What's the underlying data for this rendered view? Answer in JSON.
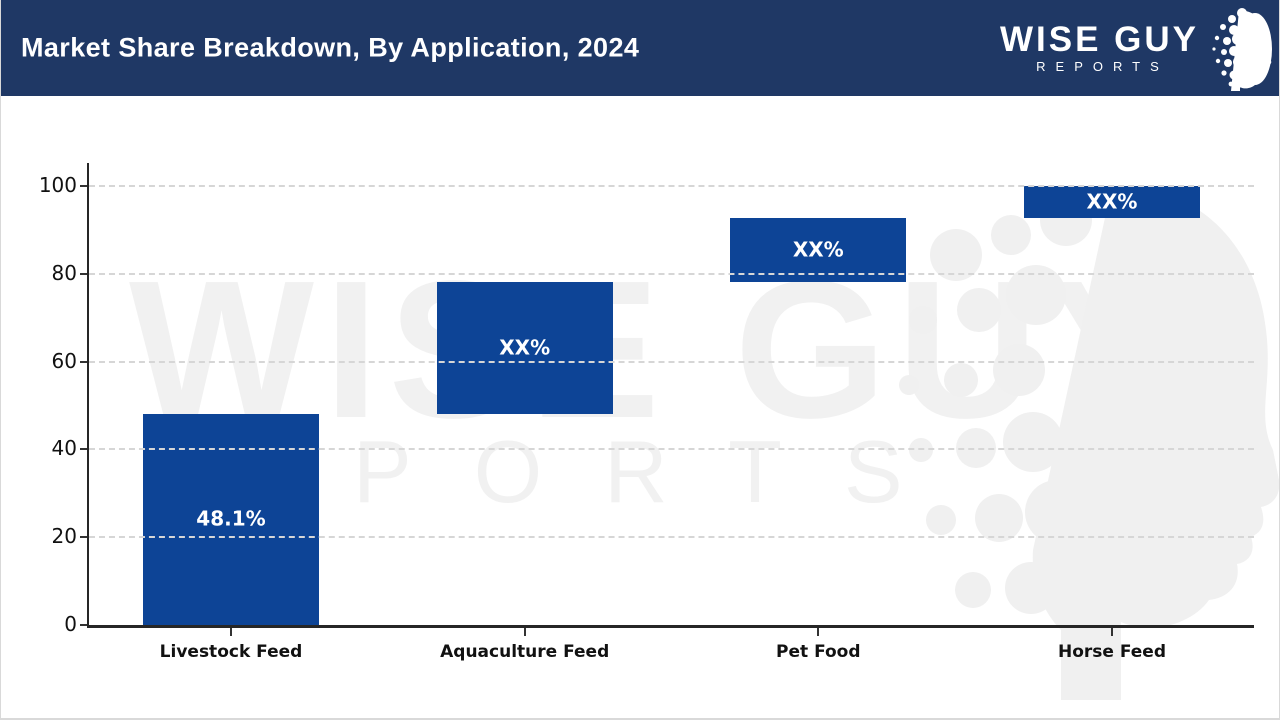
{
  "header": {
    "title": "Market Share Breakdown, By Application, 2024",
    "logo": {
      "wordmark": "WISE GUY",
      "subtext": "REPORTS"
    }
  },
  "watermark": {
    "line1": "WISE GUY",
    "line2": "PORTS"
  },
  "chart_data": {
    "type": "bar",
    "subtype": "waterfall-floating-bars",
    "title": "Market Share Breakdown, By Application, 2024",
    "categories": [
      "Livestock Feed",
      "Aquaculture Feed",
      "Pet Food",
      "Horse Feed"
    ],
    "segments": [
      {
        "category": "Livestock Feed",
        "start": 0,
        "end": 48.1,
        "label": "48.1%"
      },
      {
        "category": "Aquaculture Feed",
        "start": 48.1,
        "end": 78.1,
        "label": "XX%"
      },
      {
        "category": "Pet Food",
        "start": 78.1,
        "end": 92.8,
        "label": "XX%"
      },
      {
        "category": "Horse Feed",
        "start": 92.8,
        "end": 100,
        "label": "XX%"
      }
    ],
    "xlabel": "",
    "ylabel": "",
    "ylim": [
      0,
      100
    ],
    "yticks": [
      0,
      20,
      40,
      60,
      80,
      100
    ],
    "grid": "horizontal-dashed",
    "legend": "none",
    "bar_color": "#0d4496",
    "bar_label_color": "#ffffff",
    "header_bg_color": "#1f3865",
    "grid_color": "#d6d6d6",
    "axis_color": "#262626",
    "watermark_color": "#f1f1f1"
  }
}
